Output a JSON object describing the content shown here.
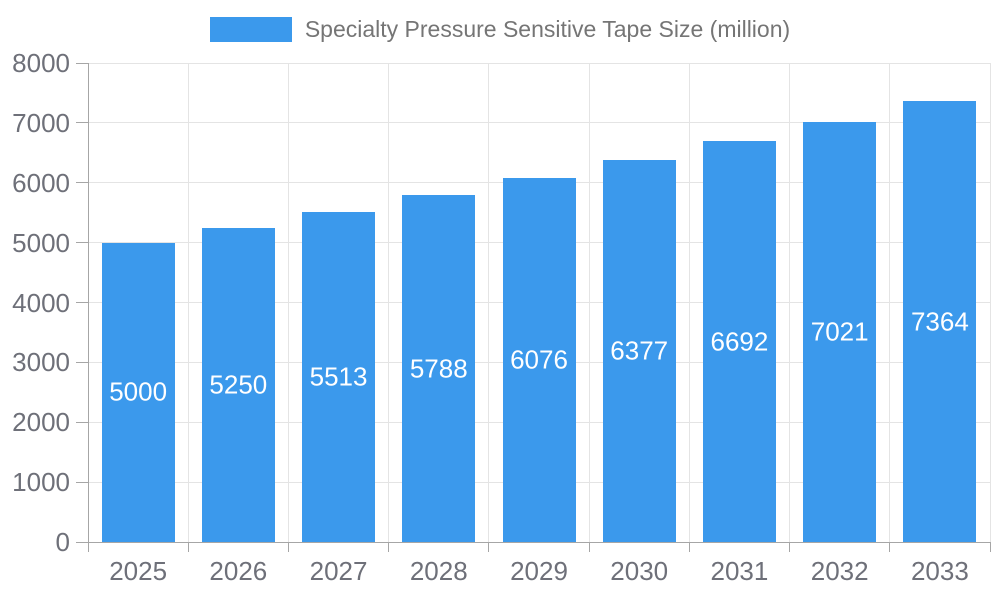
{
  "legend": {
    "label": "Specialty Pressure Sensitive Tape Size (million)"
  },
  "colors": {
    "bar": "#3B99EC",
    "bar_label": "#FFFFFF",
    "axis_text": "#6E7079",
    "legend_text": "#757575",
    "gridline": "#E4E4E4",
    "axis_line": "#A6A6A6",
    "background": "#FFFFFF"
  },
  "chart_data": {
    "type": "bar",
    "title": "Specialty Pressure Sensitive Tape Size (million)",
    "series_name": "Specialty Pressure Sensitive Tape Size (million)",
    "categories": [
      "2025",
      "2026",
      "2027",
      "2028",
      "2029",
      "2030",
      "2031",
      "2032",
      "2033"
    ],
    "values": [
      5000,
      5250,
      5513,
      5788,
      6076,
      6377,
      6692,
      7021,
      7364
    ],
    "xlabel": "",
    "ylabel": "",
    "ylim": [
      0,
      8000
    ],
    "yticks": [
      0,
      1000,
      2000,
      3000,
      4000,
      5000,
      6000,
      7000,
      8000
    ],
    "grid": true,
    "legend_position": "top",
    "value_labels_position": "inside-center"
  }
}
